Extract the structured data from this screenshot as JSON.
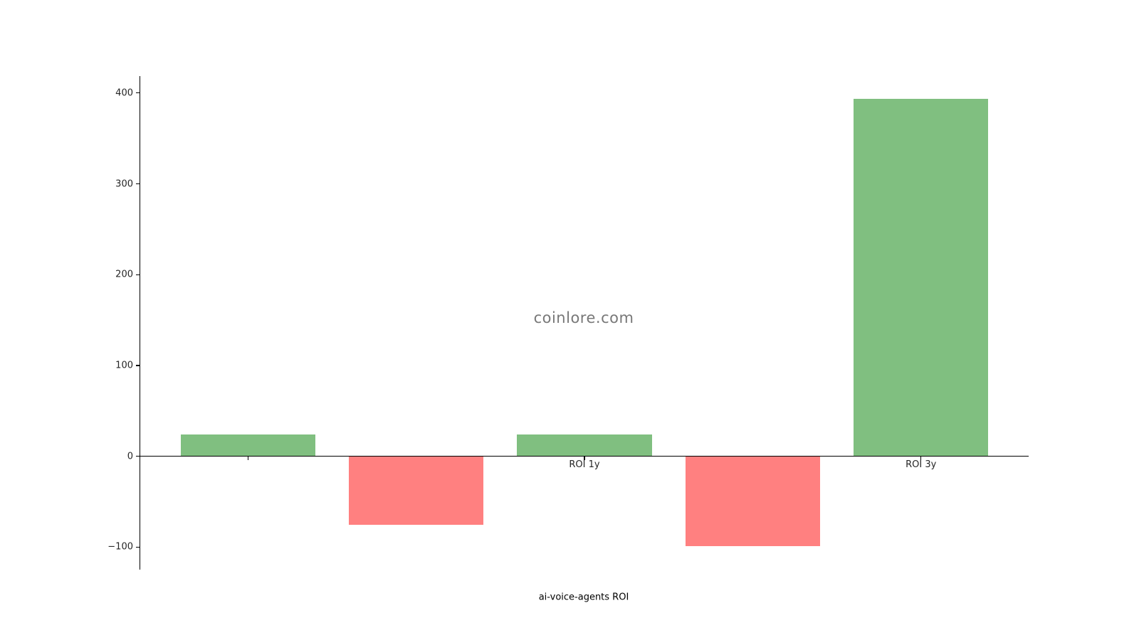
{
  "watermark": {
    "text": "coinlore.com",
    "color": "#787878"
  },
  "chart_data": {
    "type": "bar",
    "title": "",
    "xlabel": "ai-voice-agents ROI",
    "ylabel": "",
    "x": [
      0,
      1,
      2,
      3,
      4
    ],
    "values": [
      24,
      -75,
      24,
      -99,
      394
    ],
    "bar_width": 0.8,
    "colors": {
      "positive": "#80bf80",
      "negative": "#ff8080",
      "axis": "#000000",
      "tick_label": "#262626"
    },
    "x_ticks": [
      {
        "position": 0,
        "label": ""
      },
      {
        "position": 2,
        "label": "ROI 1y"
      },
      {
        "position": 4,
        "label": "ROI 3y"
      }
    ],
    "y_ticks": [
      -100,
      0,
      100,
      200,
      300,
      400
    ],
    "y_tick_labels": [
      "−100",
      "0",
      "100",
      "200",
      "300",
      "400"
    ],
    "ylim": [
      -124.7,
      418.7
    ],
    "xlim": [
      -0.64,
      4.64
    ],
    "grid": false,
    "legend": false
  }
}
